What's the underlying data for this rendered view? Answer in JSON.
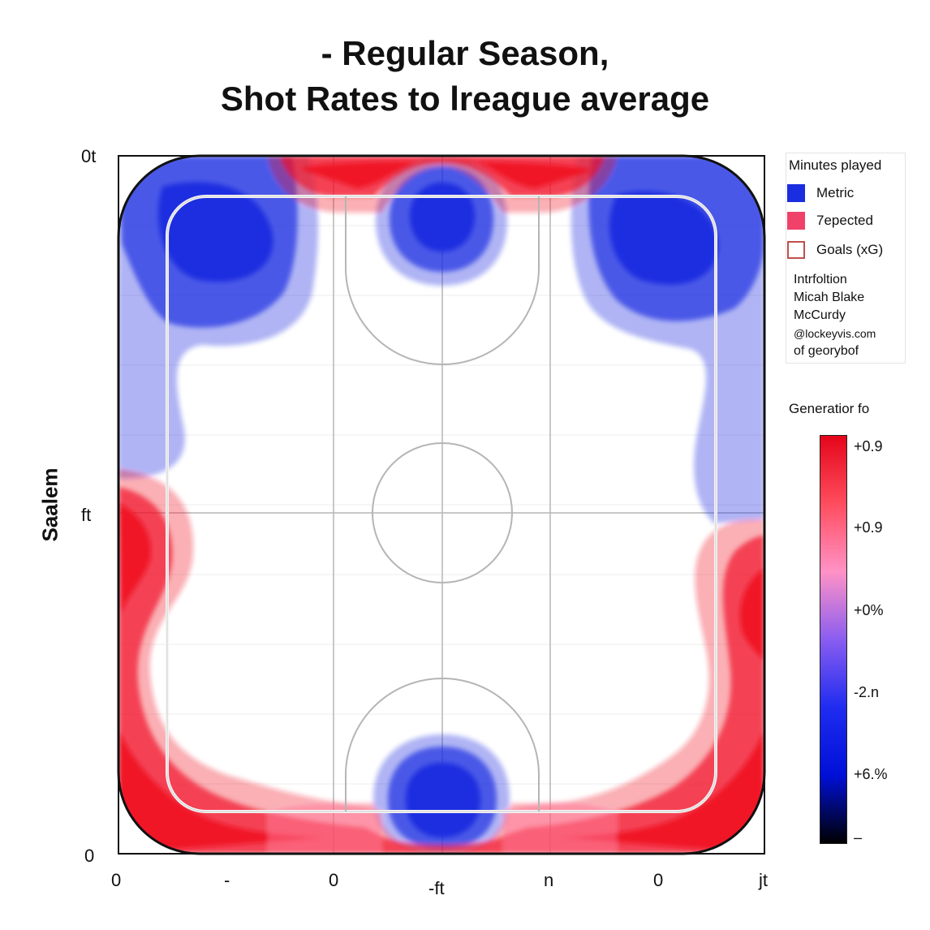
{
  "chart_data": {
    "type": "heatmap",
    "title": "- Regular Season,",
    "subtitle": "Shot Rates to lreague average",
    "ylabel": "Saalem",
    "xlabel": "-ft",
    "x_tick_labels": [
      "0",
      "-",
      "0",
      "n",
      "0",
      "jt"
    ],
    "y_tick_labels": [
      "0t",
      "ft",
      "0"
    ],
    "legend": {
      "title": "Minutes played",
      "placement": "right",
      "items": [
        {
          "label": "Metric",
          "color": "#1a2de0",
          "style": "filled"
        },
        {
          "label": "7epected",
          "color": "#f0416a",
          "style": "filled"
        },
        {
          "label": "Goals (xG)",
          "color": "#c0504a",
          "style": "outline"
        }
      ]
    },
    "credits": [
      "Intrfoltion",
      "Micah Blake",
      "McCurdy",
      "@lockeyvis.com",
      "of georybof"
    ],
    "colorbar": {
      "title": "Generatior fo",
      "tick_labels": [
        "+0.9",
        "+0.9",
        "+0%",
        "-2.n",
        "+6.%",
        "–"
      ],
      "colors": [
        "#e4051a",
        "#ff4d5e",
        "#ff92c6",
        "#8a5df0",
        "#1f2cf0",
        "#0010d8",
        "#000000"
      ]
    },
    "regions": [
      {
        "area": "upper-left corner",
        "sign": "below average"
      },
      {
        "area": "upper-right corner",
        "sign": "below average"
      },
      {
        "area": "top goal crease",
        "sign": "below average"
      },
      {
        "area": "bottom goal crease",
        "sign": "below average"
      },
      {
        "area": "top boards",
        "sign": "above average"
      },
      {
        "area": "lower-left boards",
        "sign": "above average"
      },
      {
        "area": "lower-right boards",
        "sign": "above average"
      },
      {
        "area": "bottom boards",
        "sign": "above average"
      }
    ],
    "colors": {
      "below": "#1a2de0",
      "above": "#f01428",
      "rink_line": "#b5b5b5",
      "rink_border": "#111111"
    },
    "grid": true
  }
}
